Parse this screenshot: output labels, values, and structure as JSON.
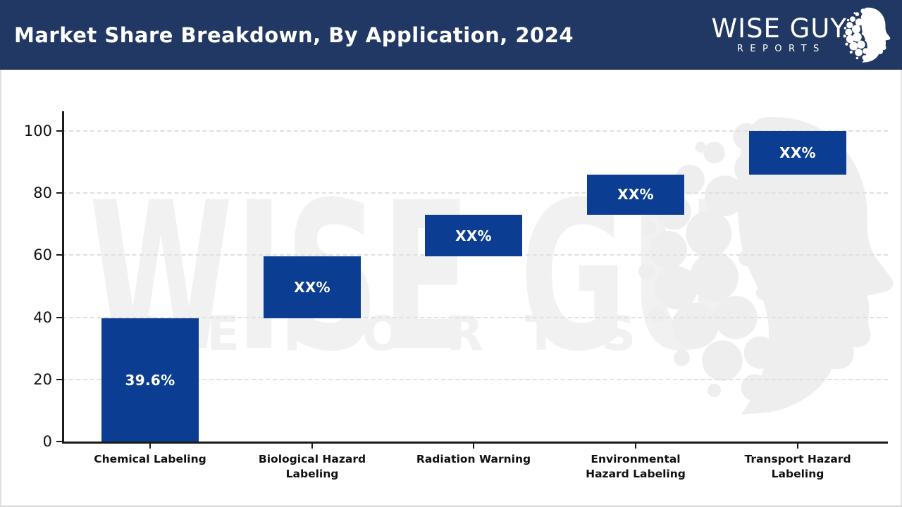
{
  "header": {
    "title": "Market Share Breakdown, By Application, 2024",
    "bg_color": "#203863",
    "logo": {
      "name": "WISE GUY",
      "subtitle": "REPORTS"
    }
  },
  "watermark": {
    "line1": "WISE GUY",
    "line2": "REPORTS"
  },
  "chart_data": {
    "type": "bar",
    "subtype": "floating-waterfall",
    "title": "Market Share Breakdown, By Application, 2024",
    "categories": [
      "Chemical Labeling",
      "Biological Hazard\nLabeling",
      "Radiation Warning",
      "Environmental\nHazard Labeling",
      "Transport Hazard\nLabeling"
    ],
    "bars": [
      {
        "category": "Chemical Labeling",
        "start": 0,
        "end": 39.6,
        "value_label": "39.6%"
      },
      {
        "category": "Biological Hazard Labeling",
        "start": 39.6,
        "end": 59.6,
        "value_label": "XX%"
      },
      {
        "category": "Radiation Warning",
        "start": 59.6,
        "end": 73,
        "value_label": "XX%"
      },
      {
        "category": "Environmental Hazard Labeling",
        "start": 73,
        "end": 86,
        "value_label": "XX%"
      },
      {
        "category": "Transport Hazard Labeling",
        "start": 86,
        "end": 100,
        "value_label": "XX%"
      }
    ],
    "ylim": [
      0,
      100
    ],
    "yticks": [
      0,
      20,
      40,
      60,
      80,
      100
    ],
    "xlabel": "",
    "ylabel": "",
    "bar_color": "#0b3e92",
    "value_label_color": "#ffffff",
    "grid": "horizontal-dashed",
    "legend": null
  }
}
